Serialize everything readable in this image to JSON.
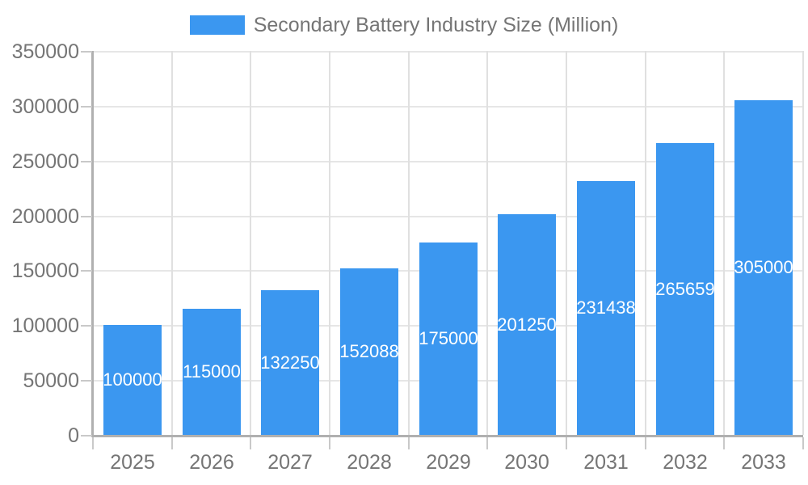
{
  "chart_data": {
    "type": "bar",
    "title": "",
    "legend": {
      "label": "Secondary Battery Industry Size (Million)",
      "position": "top"
    },
    "categories": [
      "2025",
      "2026",
      "2027",
      "2028",
      "2029",
      "2030",
      "2031",
      "2032",
      "2033"
    ],
    "values": [
      100000,
      115000,
      132250,
      152088,
      175000,
      201250,
      231438,
      265659,
      305000
    ],
    "xlabel": "",
    "ylabel": "",
    "ylim": [
      0,
      350000
    ],
    "ytick_step": 50000,
    "yticks": [
      "0",
      "50000",
      "100000",
      "150000",
      "200000",
      "250000",
      "300000",
      "350000"
    ],
    "grid": true,
    "legend_visible": true,
    "colors": {
      "bar": "#3b97f0",
      "bar_label_text": "#ffffff",
      "axis_label_text": "#757575",
      "legend_text": "#757575",
      "axis_line": "#b0b0b0",
      "gridline_h": "#e6e6e6",
      "gridline_v": "#e0e0e0",
      "tick": "#c9c9c9",
      "background": "#ffffff"
    }
  }
}
